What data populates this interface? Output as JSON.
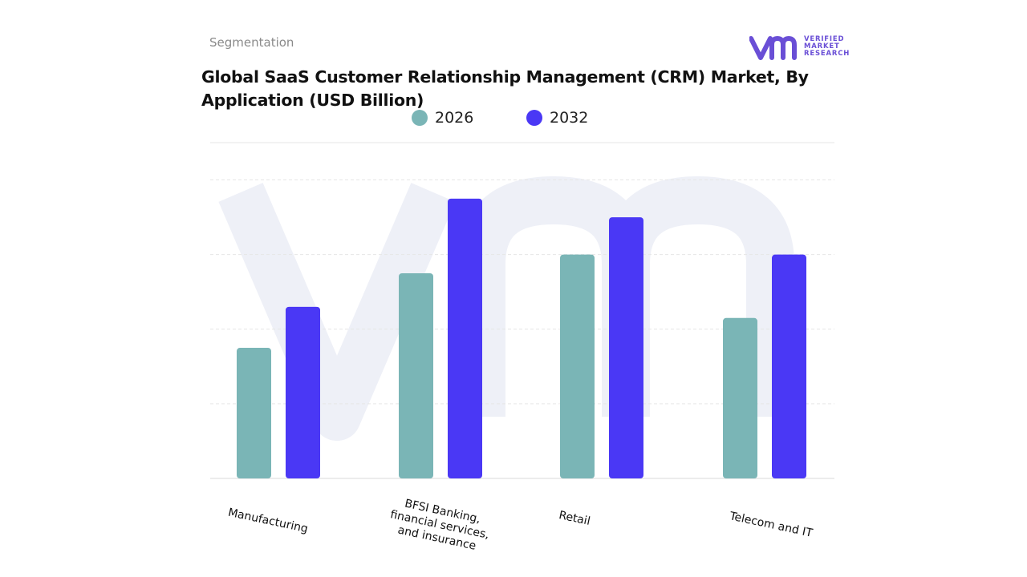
{
  "header": {
    "segment_label": "Segmentation",
    "logo_lines": [
      "VERIFIED",
      "MARKET",
      "RESEARCH"
    ],
    "logo_registered": "®"
  },
  "colors": {
    "series_2026": "#7ab5b6",
    "series_2032": "#4a38f5",
    "brand": "#6a4fd6",
    "grid": "#e6e6e6",
    "watermark": "#eef0f7"
  },
  "chart_data": {
    "type": "bar",
    "title": "Global SaaS Customer Relationship Management (CRM) Market, By Application (USD Billion)",
    "categories": [
      "Manufacturing",
      "BFSI Banking, financial services, and insurance",
      "Retail",
      "Telecom and IT"
    ],
    "category_label_lines": [
      [
        "Manufacturing"
      ],
      [
        "BFSI Banking,",
        "financial services,",
        "and insurance"
      ],
      [
        "Retail"
      ],
      [
        "Telecom and IT"
      ]
    ],
    "series": [
      {
        "name": "2026",
        "values": [
          1.75,
          2.75,
          3.0,
          2.15
        ]
      },
      {
        "name": "2032",
        "values": [
          2.3,
          3.75,
          3.5,
          3.0
        ]
      }
    ],
    "ylim": [
      0,
      4.5
    ],
    "grid": true,
    "legend_position": "top-center",
    "xlabel": "",
    "ylabel": ""
  }
}
